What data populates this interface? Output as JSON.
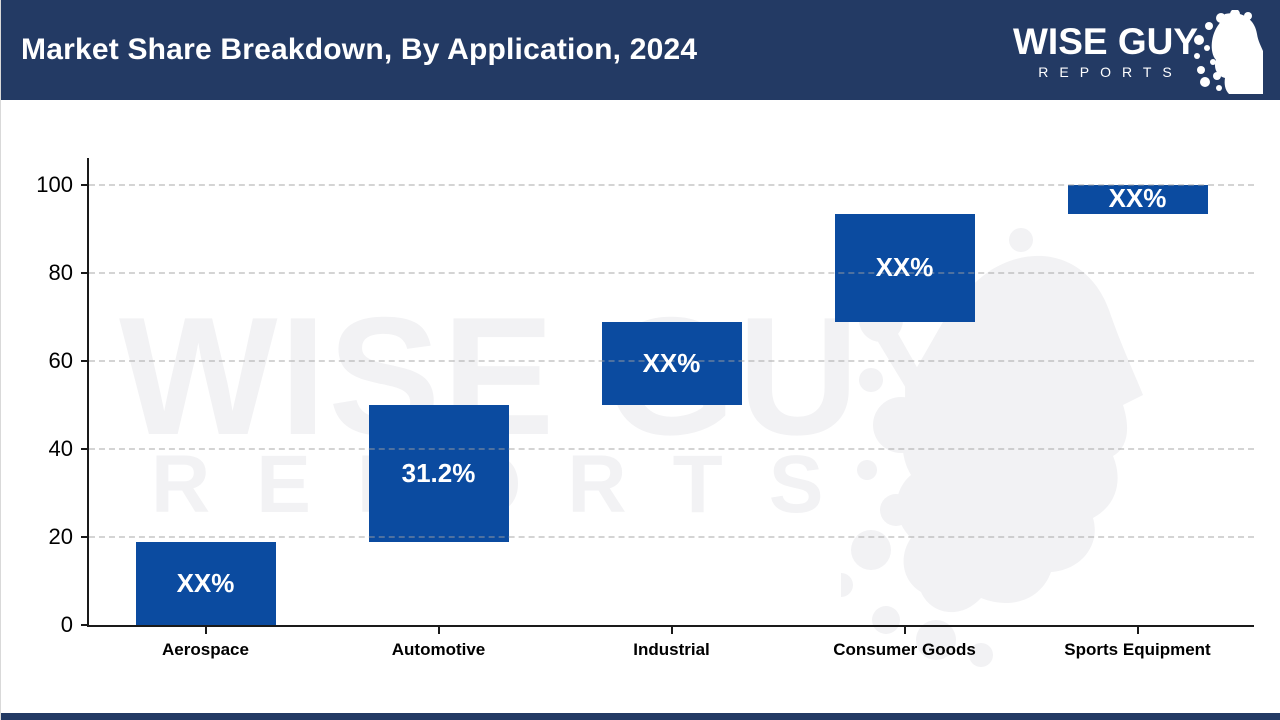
{
  "header": {
    "title": "Market Share Breakdown, By Application, 2024",
    "logo": {
      "line1": "WISE GUY",
      "line2": "REPORTS"
    },
    "bg_color": "#233a64"
  },
  "watermark": {
    "line1": "WISE GUY",
    "line2": "REPORTS"
  },
  "chart_data": {
    "type": "bar",
    "subtype": "floating-waterfall",
    "title": "Market Share Breakdown, By Application, 2024",
    "xlabel": "",
    "ylabel": "",
    "categories": [
      "Aerospace",
      "Automotive",
      "Industrial",
      "Consumer Goods",
      "Sports Equipment"
    ],
    "segments": [
      {
        "category": "Aerospace",
        "start": 0,
        "end": 18.8,
        "value_label": "XX%"
      },
      {
        "category": "Automotive",
        "start": 18.8,
        "end": 50.0,
        "value_label": "31.2%"
      },
      {
        "category": "Industrial",
        "start": 50.0,
        "end": 68.8,
        "value_label": "XX%"
      },
      {
        "category": "Consumer Goods",
        "start": 68.8,
        "end": 93.5,
        "value_label": "XX%"
      },
      {
        "category": "Sports Equipment",
        "start": 93.5,
        "end": 100.0,
        "value_label": "XX%"
      }
    ],
    "y_ticks": [
      0,
      20,
      40,
      60,
      80,
      100
    ],
    "ylim": [
      0,
      105
    ],
    "grid": "horizontal-dashed",
    "legend": "none",
    "bar_color": "#0b4ba0",
    "bar_label_color": "#ffffff",
    "axis_color": "#1a1a1a"
  }
}
